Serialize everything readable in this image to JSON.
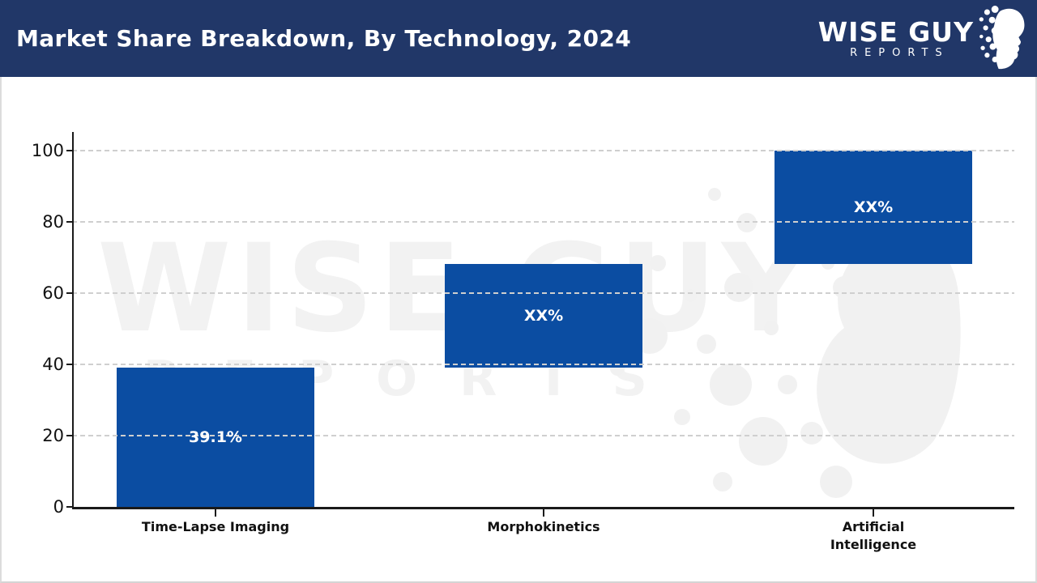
{
  "header": {
    "title": "Market Share Breakdown, By Technology, 2024",
    "background_color": "#213768",
    "logo": {
      "primary": "WISE GUY",
      "secondary": "REPORTS"
    }
  },
  "watermark": {
    "line1": "WISE GUY",
    "line2": "REPORTS"
  },
  "chart_data": {
    "type": "bar",
    "subtype": "waterfall",
    "title": "Market Share Breakdown, By Technology, 2024",
    "categories": [
      "Time-Lapse Imaging",
      "Morphokinetics",
      "Artificial\nIntelligence"
    ],
    "segments": [
      {
        "category": "Time-Lapse Imaging",
        "start": 0,
        "end": 39.1,
        "label": "39.1%"
      },
      {
        "category": "Morphokinetics",
        "start": 39.1,
        "end": 68.2,
        "label": "XX%"
      },
      {
        "category": "Artificial Intelligence",
        "start": 68.2,
        "end": 100,
        "label": "XX%"
      }
    ],
    "ylim": [
      0,
      100
    ],
    "yticks": [
      0,
      20,
      40,
      60,
      80,
      100
    ],
    "grid": "horizontal-dashed",
    "legend": "none",
    "bar_color": "#0b4da2",
    "bar_label_color": "#ffffff",
    "axis_color": "#1a1a1a",
    "tick_label_color": "#111111"
  }
}
